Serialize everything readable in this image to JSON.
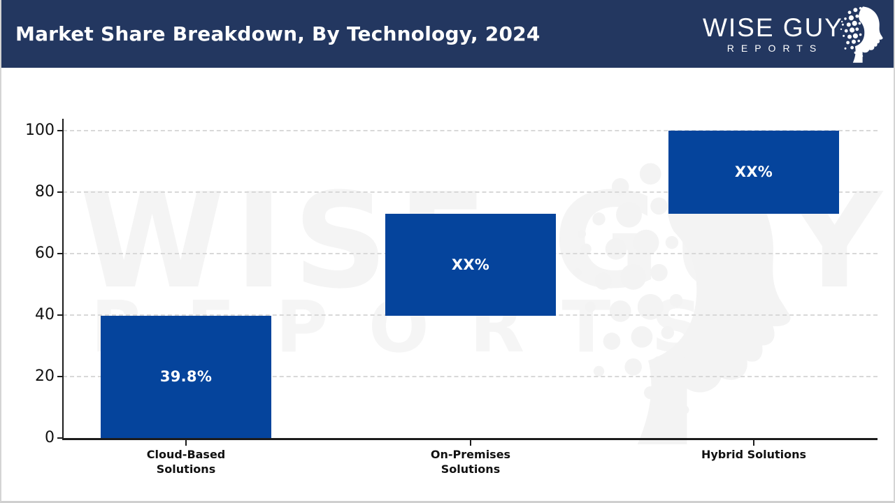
{
  "header": {
    "title": "Market Share Breakdown, By Technology, 2024",
    "logo": {
      "line1": "WISE GUY",
      "line2": "REPORTS"
    }
  },
  "watermark": {
    "line1": "WISE GUY",
    "line2": "REPORTS"
  },
  "colors": {
    "header_bg": "#233760",
    "bar": "#05449c",
    "axis": "#1c1c1c",
    "gridline": "#d8d8d8",
    "watermark": "#f4f4f4"
  },
  "chart_data": {
    "type": "bar",
    "subtype": "floating-waterfall",
    "title": "Market Share Breakdown, By Technology, 2024",
    "categories": [
      "Cloud-Based Solutions",
      "On-Premises Solutions",
      "Hybrid Solutions"
    ],
    "category_lines": [
      [
        "Cloud-Based",
        "Solutions"
      ],
      [
        "On-Premises",
        "Solutions"
      ],
      [
        "Hybrid Solutions"
      ]
    ],
    "segments": [
      {
        "category": "Cloud-Based Solutions",
        "start": 0,
        "end": 39.8,
        "value": 39.8,
        "label": "39.8%"
      },
      {
        "category": "On-Premises Solutions",
        "start": 39.8,
        "end": 73,
        "value": 33.2,
        "label": "XX%"
      },
      {
        "category": "Hybrid Solutions",
        "start": 73,
        "end": 100,
        "value": 27,
        "label": "XX%"
      }
    ],
    "xlabel": "",
    "ylabel": "",
    "ylim": [
      0,
      100
    ],
    "yticks": [
      0,
      20,
      40,
      60,
      80,
      100
    ],
    "grid": "horizontal-dashed",
    "legend": "none",
    "bar_color": "#05449c"
  }
}
